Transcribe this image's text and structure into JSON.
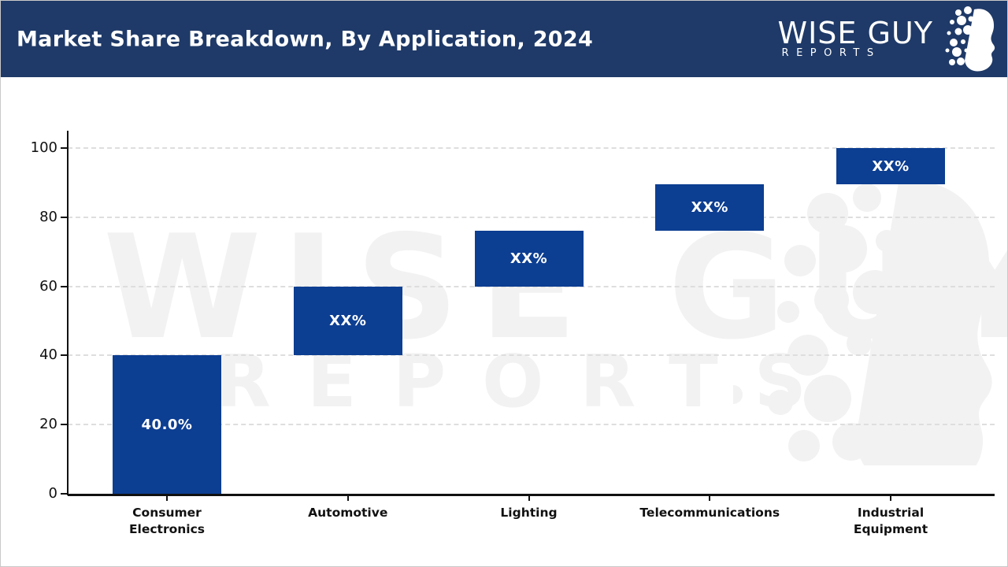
{
  "header": {
    "title": "Market Share Breakdown, By Application, 2024",
    "logo": {
      "line1": "WISE GUY",
      "line2": "REPORTS"
    }
  },
  "watermark": {
    "line1": "WISE GUY",
    "line2": "REPORTS"
  },
  "chart_data": {
    "type": "bar",
    "subtype": "waterfall",
    "title": "Market Share Breakdown, By Application, 2024",
    "categories": [
      "Consumer Electronics",
      "Automotive",
      "Lighting",
      "Telecommunications",
      "Industrial Equipment"
    ],
    "category_lines": [
      [
        "Consumer",
        "Electronics"
      ],
      [
        "Automotive"
      ],
      [
        "Lighting"
      ],
      [
        "Telecommunications"
      ],
      [
        "Industrial",
        "Equipment"
      ]
    ],
    "segments": [
      {
        "category": "Consumer Electronics",
        "start": 0,
        "end": 40,
        "label": "40.0%"
      },
      {
        "category": "Automotive",
        "start": 40,
        "end": 60,
        "label": "XX%"
      },
      {
        "category": "Lighting",
        "start": 60,
        "end": 76,
        "label": "XX%"
      },
      {
        "category": "Telecommunications",
        "start": 76,
        "end": 89.5,
        "label": "XX%"
      },
      {
        "category": "Industrial Equipment",
        "start": 89.5,
        "end": 100,
        "label": "XX%"
      }
    ],
    "values": [
      40,
      20,
      16,
      13.5,
      10.5
    ],
    "bar_labels": [
      "40.0%",
      "XX%",
      "XX%",
      "XX%",
      "XX%"
    ],
    "yticks": [
      0,
      20,
      40,
      60,
      80,
      100
    ],
    "ylim": [
      0,
      105
    ],
    "xlabel": "",
    "ylabel": "",
    "grid": "horizontal-dashed",
    "legend": "none"
  },
  "colors": {
    "header_bg": "#1f3a68",
    "bar": "#0c3e92",
    "bar_label": "#ffffff",
    "axis": "#111111",
    "gridline": "#dedede",
    "tick_label": "#111111",
    "watermark": "#f2f2f2",
    "page_bg": "#ffffff",
    "border": "#c9c9c9"
  }
}
